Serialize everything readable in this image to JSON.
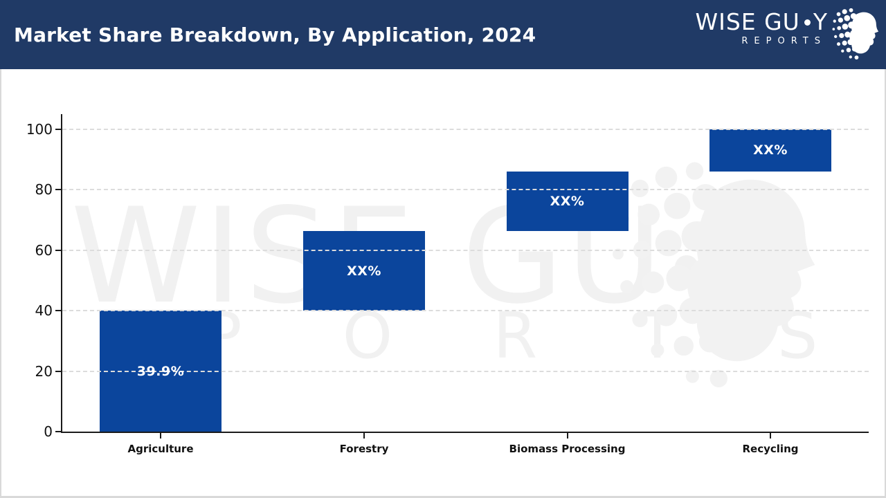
{
  "header": {
    "title": "Market Share Breakdown, By Application, 2024",
    "logo": {
      "main_word1": "WISE GU",
      "main_word2": "Y",
      "sub": "REPORTS"
    }
  },
  "watermark": {
    "word1": "WISE GU",
    "word2": "Y",
    "sub": "P O R T S"
  },
  "colors": {
    "header_navy": "#203A66",
    "bar_blue": "#0B459C",
    "gridline_gray": "#dcdcdc",
    "watermark_gray": "#f1f1f1"
  },
  "chart_data": {
    "type": "bar",
    "subtype": "waterfall",
    "title": "Market Share Breakdown, By Application, 2024",
    "xlabel": "",
    "ylabel": "",
    "categories": [
      "Agriculture",
      "Forestry",
      "Biomass Processing",
      "Recycling"
    ],
    "segments": [
      {
        "category": "Agriculture",
        "start": 0,
        "end": 39.9,
        "label": "39.9%"
      },
      {
        "category": "Forestry",
        "start": 39.9,
        "end": 66.3,
        "label": "XX%"
      },
      {
        "category": "Biomass Processing",
        "start": 66.3,
        "end": 86.0,
        "label": "XX%"
      },
      {
        "category": "Recycling",
        "start": 86.0,
        "end": 100.0,
        "label": "XX%"
      }
    ],
    "yticks": [
      0,
      20,
      40,
      60,
      80,
      100
    ],
    "ylim": [
      0,
      105
    ],
    "grid": true,
    "legend": false
  }
}
